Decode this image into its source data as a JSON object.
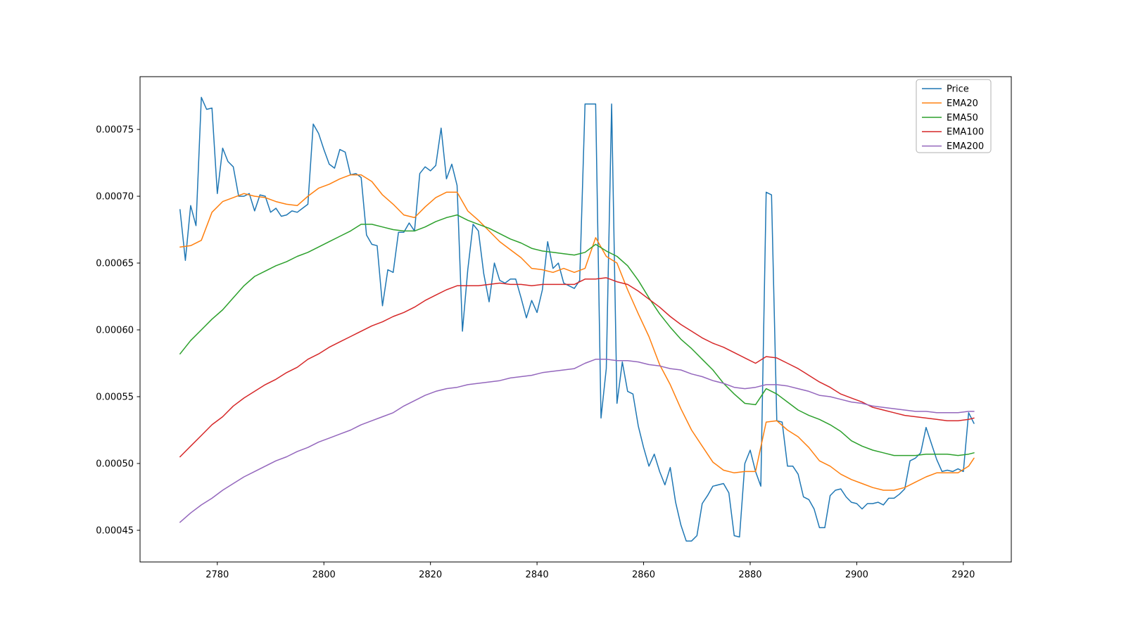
{
  "figure": {
    "background": "#ffffff",
    "title": ""
  },
  "axes": {
    "spine_color": "#000000",
    "tick_color": "#000000",
    "tick_label_color": "#000000",
    "tick_font_px": 13
  },
  "legend": {
    "position": "upper right",
    "border_color": "#b0b0b0",
    "background": "#ffffff",
    "entries": [
      "Price",
      "EMA20",
      "EMA50",
      "EMA100",
      "EMA200"
    ]
  },
  "chart_data": {
    "type": "line",
    "title": "",
    "xlabel": "",
    "ylabel": "",
    "grid": false,
    "legend_position": "upper right",
    "xlim": [
      2765.5,
      2929.0
    ],
    "ylim_scaled": [
      426.3,
      789.5
    ],
    "y_scale": 1e-06,
    "x_ticks": [
      2780,
      2800,
      2820,
      2840,
      2860,
      2880,
      2900,
      2920
    ],
    "x_tick_labels": [
      "2780",
      "2800",
      "2820",
      "2840",
      "2860",
      "2880",
      "2900",
      "2920"
    ],
    "y_ticks_scaled": [
      450,
      500,
      550,
      600,
      650,
      700,
      750
    ],
    "y_tick_labels": [
      "0.00045",
      "0.00050",
      "0.00055",
      "0.00060",
      "0.00065",
      "0.00070",
      "0.00075"
    ],
    "series": [
      {
        "name": "Price",
        "color": "#1f77b4",
        "x_start": 2773,
        "x_step": 1,
        "y_scaled": [
          690,
          652,
          693,
          678,
          774,
          765,
          766,
          702,
          736,
          726,
          722,
          700,
          700,
          702,
          689,
          701,
          700,
          688,
          691,
          685,
          686,
          689,
          688,
          691,
          694,
          754,
          747,
          735,
          724,
          721,
          735,
          733,
          716,
          717,
          714,
          671,
          664,
          663,
          618,
          645,
          643,
          673,
          673,
          680,
          674,
          717,
          722,
          719,
          723,
          751,
          713,
          724,
          708,
          599,
          645,
          679,
          674,
          642,
          621,
          650,
          637,
          635,
          638,
          638,
          624,
          609,
          622,
          613,
          630,
          666,
          646,
          650,
          635,
          633,
          631,
          637,
          769,
          769,
          769,
          534,
          571,
          769,
          545,
          576,
          554,
          552,
          528,
          512,
          498,
          507,
          494,
          484,
          497,
          471,
          454,
          442,
          442,
          446,
          470,
          476,
          483,
          484,
          485,
          478,
          446,
          445,
          500,
          510,
          494,
          483,
          703,
          701,
          532,
          531,
          498,
          498,
          492,
          475,
          473,
          466,
          452,
          452,
          476,
          480,
          481,
          475,
          471,
          470,
          466,
          470,
          470,
          471,
          469,
          474,
          474,
          477,
          481,
          502,
          504,
          508,
          527,
          515,
          503,
          494,
          495,
          494,
          496,
          494,
          538,
          530
        ]
      },
      {
        "name": "EMA20",
        "color": "#ff7f0e",
        "x_start": 2773,
        "x_step": 2,
        "x_end_extra": 2922,
        "y_scaled": [
          662,
          663,
          667,
          688,
          696,
          699,
          702,
          700,
          699,
          696,
          694,
          693,
          700,
          706,
          709,
          713,
          716,
          716,
          711,
          701,
          694,
          686,
          684,
          692,
          699,
          703,
          703,
          689,
          682,
          674,
          666,
          660,
          654,
          646,
          645,
          643,
          646,
          643,
          646,
          669,
          655,
          650,
          630,
          612,
          595,
          574,
          559,
          541,
          525,
          513,
          501,
          495,
          493,
          494,
          494,
          531,
          532,
          525,
          520,
          512,
          502,
          498,
          492,
          488,
          485,
          482,
          480,
          480,
          482,
          486,
          490,
          493,
          493,
          493,
          498,
          504
        ]
      },
      {
        "name": "EMA50",
        "color": "#2ca02c",
        "x_start": 2773,
        "x_step": 2,
        "x_end_extra": 2922,
        "y_scaled": [
          582,
          592,
          600,
          608,
          615,
          624,
          633,
          640,
          644,
          648,
          651,
          655,
          658,
          662,
          666,
          670,
          674,
          679,
          679,
          677,
          675,
          674,
          674,
          677,
          681,
          684,
          686,
          682,
          679,
          676,
          672,
          668,
          665,
          661,
          659,
          658,
          657,
          656,
          658,
          664,
          659,
          655,
          648,
          637,
          624,
          612,
          602,
          593,
          586,
          578,
          570,
          560,
          552,
          545,
          544,
          556,
          552,
          546,
          540,
          536,
          533,
          529,
          524,
          517,
          513,
          510,
          508,
          506,
          506,
          506,
          507,
          507,
          507,
          506,
          507,
          508
        ]
      },
      {
        "name": "EMA100",
        "color": "#d62728",
        "x_start": 2773,
        "x_step": 2,
        "x_end_extra": 2922,
        "y_scaled": [
          505,
          513,
          521,
          529,
          535,
          543,
          549,
          554,
          559,
          563,
          568,
          572,
          578,
          582,
          587,
          591,
          595,
          599,
          603,
          606,
          610,
          613,
          617,
          622,
          626,
          630,
          633,
          633,
          633,
          634,
          635,
          634,
          634,
          633,
          634,
          634,
          634,
          634,
          638,
          638,
          639,
          636,
          634,
          629,
          623,
          617,
          610,
          604,
          599,
          594,
          590,
          587,
          583,
          579,
          575,
          580,
          579,
          575,
          571,
          566,
          561,
          557,
          552,
          549,
          546,
          542,
          540,
          538,
          536,
          535,
          534,
          533,
          532,
          532,
          533,
          534
        ]
      },
      {
        "name": "EMA200",
        "color": "#9467bd",
        "x_start": 2773,
        "x_step": 2,
        "x_end_extra": 2922,
        "y_scaled": [
          456,
          463,
          469,
          474,
          480,
          485,
          490,
          494,
          498,
          502,
          505,
          509,
          512,
          516,
          519,
          522,
          525,
          529,
          532,
          535,
          538,
          543,
          547,
          551,
          554,
          556,
          557,
          559,
          560,
          561,
          562,
          564,
          565,
          566,
          568,
          569,
          570,
          571,
          575,
          578,
          578,
          577,
          577,
          576,
          574,
          573,
          571,
          570,
          567,
          565,
          562,
          560,
          557,
          556,
          557,
          559,
          559,
          558,
          556,
          554,
          551,
          550,
          548,
          546,
          545,
          543,
          542,
          541,
          540,
          539,
          539,
          538,
          538,
          538,
          539,
          539
        ]
      }
    ]
  }
}
